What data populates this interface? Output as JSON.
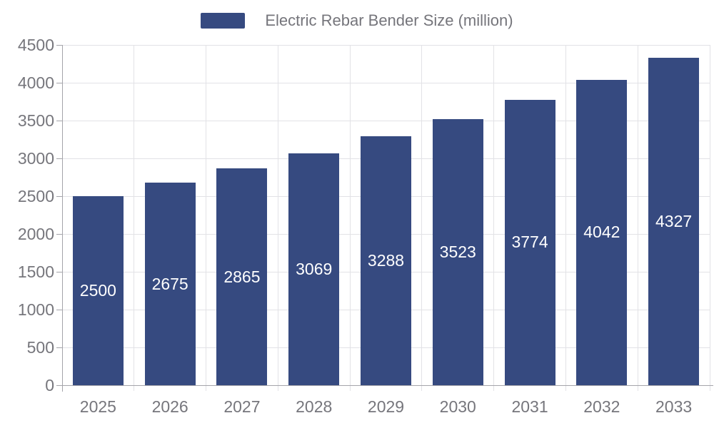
{
  "chart_data": {
    "type": "bar",
    "title": "",
    "legend": "Electric Rebar Bender Size (million)",
    "categories": [
      "2025",
      "2026",
      "2027",
      "2028",
      "2029",
      "2030",
      "2031",
      "2032",
      "2033"
    ],
    "values": [
      2500,
      2675,
      2865,
      3069,
      3288,
      3523,
      3774,
      4042,
      4327
    ],
    "xlabel": "",
    "ylabel": "",
    "ylim": [
      0,
      4500
    ],
    "ytick_step": 500,
    "yticks": [
      0,
      500,
      1000,
      1500,
      2000,
      2500,
      3000,
      3500,
      4000,
      4500
    ],
    "grid": true,
    "legend_position": "top-center",
    "bar_label_position": "inside-center",
    "colors": {
      "bar": "#364A80",
      "bar_label": "#FFFFFF",
      "grid": "#E2E2E6",
      "axis_line": "#A4A4AA",
      "axis_text": "#76767C",
      "legend_text": "#75757B",
      "background": "#FFFFFF"
    }
  }
}
